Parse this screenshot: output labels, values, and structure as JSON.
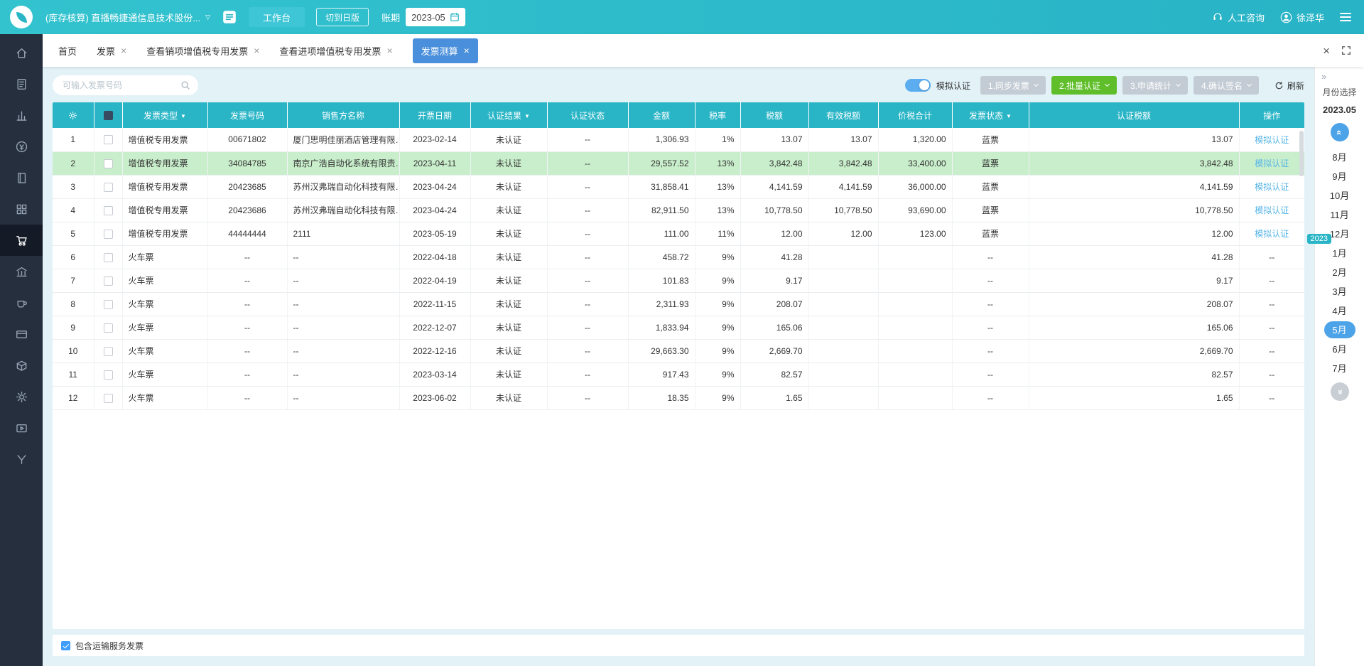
{
  "topbar": {
    "company": "(库存核算) 直播畅捷通信息技术股份...",
    "workbench_btn": "工作台",
    "switch_btn": "切到日版",
    "period_label": "账期",
    "period_value": "2023-05",
    "support_label": "人工咨询",
    "username": "徐泽华"
  },
  "sidebar": {
    "items": [
      {
        "icon": "home-icon",
        "active": false
      },
      {
        "icon": "invoice-icon",
        "active": false
      },
      {
        "icon": "report-icon",
        "active": false
      },
      {
        "icon": "funds-icon",
        "active": false
      },
      {
        "icon": "ledger-icon",
        "active": false
      },
      {
        "icon": "modules-icon",
        "active": false
      },
      {
        "icon": "purchase-icon",
        "active": true
      },
      {
        "icon": "bank-icon",
        "active": false
      },
      {
        "icon": "service-icon",
        "active": false
      },
      {
        "icon": "card-icon",
        "active": false
      },
      {
        "icon": "inventory-icon",
        "active": false
      },
      {
        "icon": "settings-icon",
        "active": false
      },
      {
        "icon": "video-icon",
        "active": false
      },
      {
        "icon": "checkout-icon",
        "active": false
      }
    ]
  },
  "tabs": [
    {
      "label": "首页",
      "closable": false,
      "active": false
    },
    {
      "label": "发票",
      "closable": true,
      "active": false
    },
    {
      "label": "查看销项增值税专用发票",
      "closable": true,
      "active": false
    },
    {
      "label": "查看进项增值税专用发票",
      "closable": true,
      "active": false
    },
    {
      "label": "发票测算",
      "closable": true,
      "active": true
    }
  ],
  "toolbar": {
    "search_placeholder": "可输入发票号码",
    "toggle_label": "模拟认证",
    "toggle_on": true,
    "buttons": [
      {
        "label": "1.同步发票",
        "variant": "gray"
      },
      {
        "label": "2.批量认证",
        "variant": "green"
      },
      {
        "label": "3.申请统计",
        "variant": "gray"
      },
      {
        "label": "4.确认签名",
        "variant": "gray"
      }
    ],
    "refresh_label": "刷新"
  },
  "table": {
    "headers": {
      "type": "发票类型",
      "number": "发票号码",
      "seller": "销售方名称",
      "date": "开票日期",
      "result": "认证结果",
      "status": "认证状态",
      "amount": "金额",
      "rate": "税率",
      "tax": "税额",
      "valid_tax": "有效税额",
      "total": "价税合计",
      "invoice_status": "发票状态",
      "cert_tax": "认证税额",
      "action": "操作"
    },
    "filter_columns": [
      "type",
      "result",
      "invoice_status"
    ],
    "rows": [
      {
        "num": "1",
        "type": "增值税专用发票",
        "number": "00671802",
        "seller": "厦门思明佳丽酒店管理有限…",
        "date": "2023-02-14",
        "result": "未认证",
        "status": "--",
        "amount": "1,306.93",
        "rate": "1%",
        "tax": "13.07",
        "valid_tax": "13.07",
        "total": "1,320.00",
        "invoice_status": "蓝票",
        "cert_tax": "13.07",
        "action": "模拟认证",
        "selected": false
      },
      {
        "num": "2",
        "type": "增值税专用发票",
        "number": "34084785",
        "seller": "南京广浩自动化系统有限责…",
        "date": "2023-04-11",
        "result": "未认证",
        "status": "--",
        "amount": "29,557.52",
        "rate": "13%",
        "tax": "3,842.48",
        "valid_tax": "3,842.48",
        "total": "33,400.00",
        "invoice_status": "蓝票",
        "cert_tax": "3,842.48",
        "action": "模拟认证",
        "selected": true
      },
      {
        "num": "3",
        "type": "增值税专用发票",
        "number": "20423685",
        "seller": "苏州汉弗瑞自动化科技有限…",
        "date": "2023-04-24",
        "result": "未认证",
        "status": "--",
        "amount": "31,858.41",
        "rate": "13%",
        "tax": "4,141.59",
        "valid_tax": "4,141.59",
        "total": "36,000.00",
        "invoice_status": "蓝票",
        "cert_tax": "4,141.59",
        "action": "模拟认证",
        "selected": false
      },
      {
        "num": "4",
        "type": "增值税专用发票",
        "number": "20423686",
        "seller": "苏州汉弗瑞自动化科技有限…",
        "date": "2023-04-24",
        "result": "未认证",
        "status": "--",
        "amount": "82,911.50",
        "rate": "13%",
        "tax": "10,778.50",
        "valid_tax": "10,778.50",
        "total": "93,690.00",
        "invoice_status": "蓝票",
        "cert_tax": "10,778.50",
        "action": "模拟认证",
        "selected": false
      },
      {
        "num": "5",
        "type": "增值税专用发票",
        "number": "44444444",
        "seller": "2111",
        "date": "2023-05-19",
        "result": "未认证",
        "status": "--",
        "amount": "111.00",
        "rate": "11%",
        "tax": "12.00",
        "valid_tax": "12.00",
        "total": "123.00",
        "invoice_status": "蓝票",
        "cert_tax": "12.00",
        "action": "模拟认证",
        "selected": false
      },
      {
        "num": "6",
        "type": "火车票",
        "number": "--",
        "seller": "--",
        "date": "2022-04-18",
        "result": "未认证",
        "status": "--",
        "amount": "458.72",
        "rate": "9%",
        "tax": "41.28",
        "valid_tax": "",
        "total": "",
        "invoice_status": "--",
        "cert_tax": "41.28",
        "action": "--",
        "selected": false
      },
      {
        "num": "7",
        "type": "火车票",
        "number": "--",
        "seller": "--",
        "date": "2022-04-19",
        "result": "未认证",
        "status": "--",
        "amount": "101.83",
        "rate": "9%",
        "tax": "9.17",
        "valid_tax": "",
        "total": "",
        "invoice_status": "--",
        "cert_tax": "9.17",
        "action": "--",
        "selected": false
      },
      {
        "num": "8",
        "type": "火车票",
        "number": "--",
        "seller": "--",
        "date": "2022-11-15",
        "result": "未认证",
        "status": "--",
        "amount": "2,311.93",
        "rate": "9%",
        "tax": "208.07",
        "valid_tax": "",
        "total": "",
        "invoice_status": "--",
        "cert_tax": "208.07",
        "action": "--",
        "selected": false
      },
      {
        "num": "9",
        "type": "火车票",
        "number": "--",
        "seller": "--",
        "date": "2022-12-07",
        "result": "未认证",
        "status": "--",
        "amount": "1,833.94",
        "rate": "9%",
        "tax": "165.06",
        "valid_tax": "",
        "total": "",
        "invoice_status": "--",
        "cert_tax": "165.06",
        "action": "--",
        "selected": false
      },
      {
        "num": "10",
        "type": "火车票",
        "number": "--",
        "seller": "--",
        "date": "2022-12-16",
        "result": "未认证",
        "status": "--",
        "amount": "29,663.30",
        "rate": "9%",
        "tax": "2,669.70",
        "valid_tax": "",
        "total": "",
        "invoice_status": "--",
        "cert_tax": "2,669.70",
        "action": "--",
        "selected": false
      },
      {
        "num": "11",
        "type": "火车票",
        "number": "--",
        "seller": "--",
        "date": "2023-03-14",
        "result": "未认证",
        "status": "--",
        "amount": "917.43",
        "rate": "9%",
        "tax": "82.57",
        "valid_tax": "",
        "total": "",
        "invoice_status": "--",
        "cert_tax": "82.57",
        "action": "--",
        "selected": false
      },
      {
        "num": "12",
        "type": "火车票",
        "number": "--",
        "seller": "--",
        "date": "2023-06-02",
        "result": "未认证",
        "status": "--",
        "amount": "18.35",
        "rate": "9%",
        "tax": "1.65",
        "valid_tax": "",
        "total": "",
        "invoice_status": "--",
        "cert_tax": "1.65",
        "action": "--",
        "selected": false
      }
    ]
  },
  "month_panel": {
    "title": "月份选择",
    "current": "2023.05",
    "year_badge": "2023",
    "months": [
      {
        "label": "8月",
        "selected": false
      },
      {
        "label": "9月",
        "selected": false
      },
      {
        "label": "10月",
        "selected": false
      },
      {
        "label": "11月",
        "selected": false
      },
      {
        "label": "12月",
        "selected": false
      },
      {
        "label": "1月",
        "selected": false
      },
      {
        "label": "2月",
        "selected": false
      },
      {
        "label": "3月",
        "selected": false
      },
      {
        "label": "4月",
        "selected": false
      },
      {
        "label": "5月",
        "selected": true
      },
      {
        "label": "6月",
        "selected": false
      },
      {
        "label": "7月",
        "selected": false
      }
    ]
  },
  "footer": {
    "include_transport_label": "包含运输服务发票",
    "checked": true
  },
  "icons": {
    "tab_close": "×",
    "close_all": "×",
    "collapse_panel": "»",
    "filter_caret": "▼",
    "company_caret": "▽",
    "chevron_double": "«"
  },
  "colors": {
    "topbar_teal": "#29B5C6",
    "sidebar_dark": "#252F3E",
    "active_tab_blue": "#4A8FDB",
    "table_header_teal": "#29B5C6",
    "green_button": "#5FBE2A",
    "selected_row_green": "#C9EECB",
    "month_selected_blue": "#4DA3E8",
    "link_blue": "#56B5E8",
    "checkbox_blue": "#409EFF"
  }
}
